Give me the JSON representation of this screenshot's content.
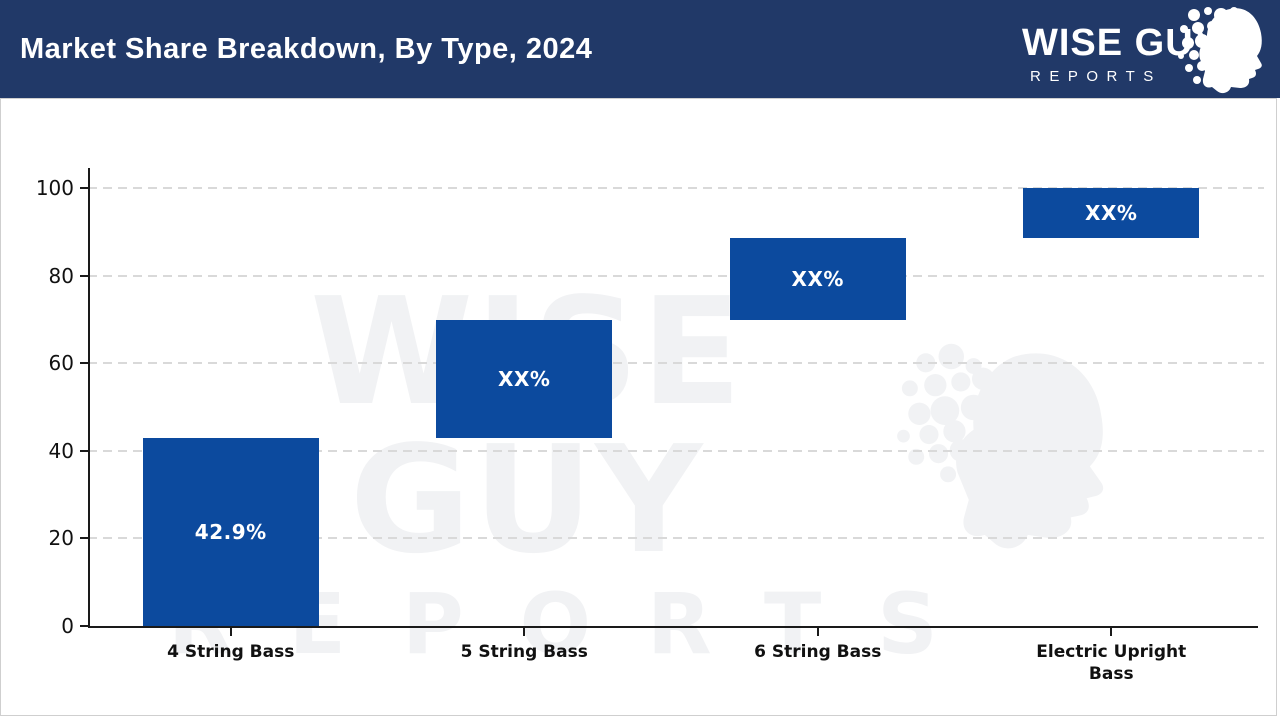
{
  "header": {
    "title": "Market Share Breakdown, By Type, 2024"
  },
  "logo": {
    "line1": "WISE GUY",
    "line2": "REPORTS"
  },
  "watermark": {
    "line1": "WISE GUY",
    "line2": "REPORTS"
  },
  "colors": {
    "header_bg": "#213968",
    "bar": "#0c4a9e",
    "grid": "#d9d9d9",
    "axis": "#1a1a1a",
    "watermark": "#f1f2f4",
    "card_border": "#cfcfcf",
    "title_text": "#ffffff",
    "bar_label_text": "#ffffff"
  },
  "chart_data": {
    "type": "bar",
    "subtype": "waterfall",
    "title": "Market Share Breakdown, By Type, 2024",
    "categories": [
      "4 String Bass",
      "5 String Bass",
      "6 String Bass",
      "Electric Upright Bass"
    ],
    "segments": [
      {
        "category": "4 String Bass",
        "start": 0,
        "end": 42.9,
        "label": "42.9%"
      },
      {
        "category": "5 String Bass",
        "start": 42.9,
        "end": 69.9,
        "label": "XX%"
      },
      {
        "category": "6 String Bass",
        "start": 69.9,
        "end": 88.6,
        "label": "XX%"
      },
      {
        "category": "Electric Upright Bass",
        "start": 88.6,
        "end": 100,
        "label": "XX%"
      }
    ],
    "ylim": [
      0,
      100
    ],
    "yticks": [
      0,
      20,
      40,
      60,
      80,
      100
    ],
    "xlabel": "",
    "ylabel": "",
    "grid": "horizontal-dashed",
    "legend": "none"
  }
}
